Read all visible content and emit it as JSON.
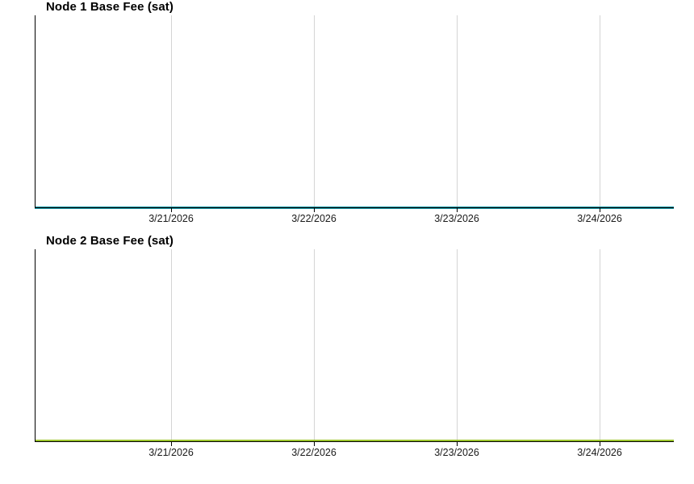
{
  "page": {
    "background": "#ffffff",
    "axis_color": "#000000",
    "grid_color": "#d4d4d4",
    "label_color": "#1a1a1a"
  },
  "chart_data": [
    {
      "type": "line",
      "title": "Node 1 Base Fee (sat)",
      "categories": [
        "3/21/2026",
        "3/22/2026",
        "3/23/2026",
        "3/24/2026"
      ],
      "series": [
        {
          "name": "Node 1 Base Fee (sat)",
          "values": [
            0,
            0,
            0,
            0
          ]
        }
      ],
      "flat_at": 0,
      "line_color": "#1499a6",
      "xlabel": "",
      "ylabel": "",
      "ylim": [
        0,
        1
      ],
      "grid": "vertical-only",
      "legend": "none",
      "y_tick_labels": []
    },
    {
      "type": "line",
      "title": "Node 2 Base Fee (sat)",
      "categories": [
        "3/21/2026",
        "3/22/2026",
        "3/23/2026",
        "3/24/2026"
      ],
      "series": [
        {
          "name": "Node 2 Base Fee (sat)",
          "values": [
            0,
            0,
            0,
            0
          ]
        }
      ],
      "flat_at": 0,
      "line_color": "#9dc62d",
      "xlabel": "",
      "ylabel": "",
      "ylim": [
        0,
        1
      ],
      "grid": "vertical-only",
      "legend": "none",
      "y_tick_labels": []
    }
  ]
}
